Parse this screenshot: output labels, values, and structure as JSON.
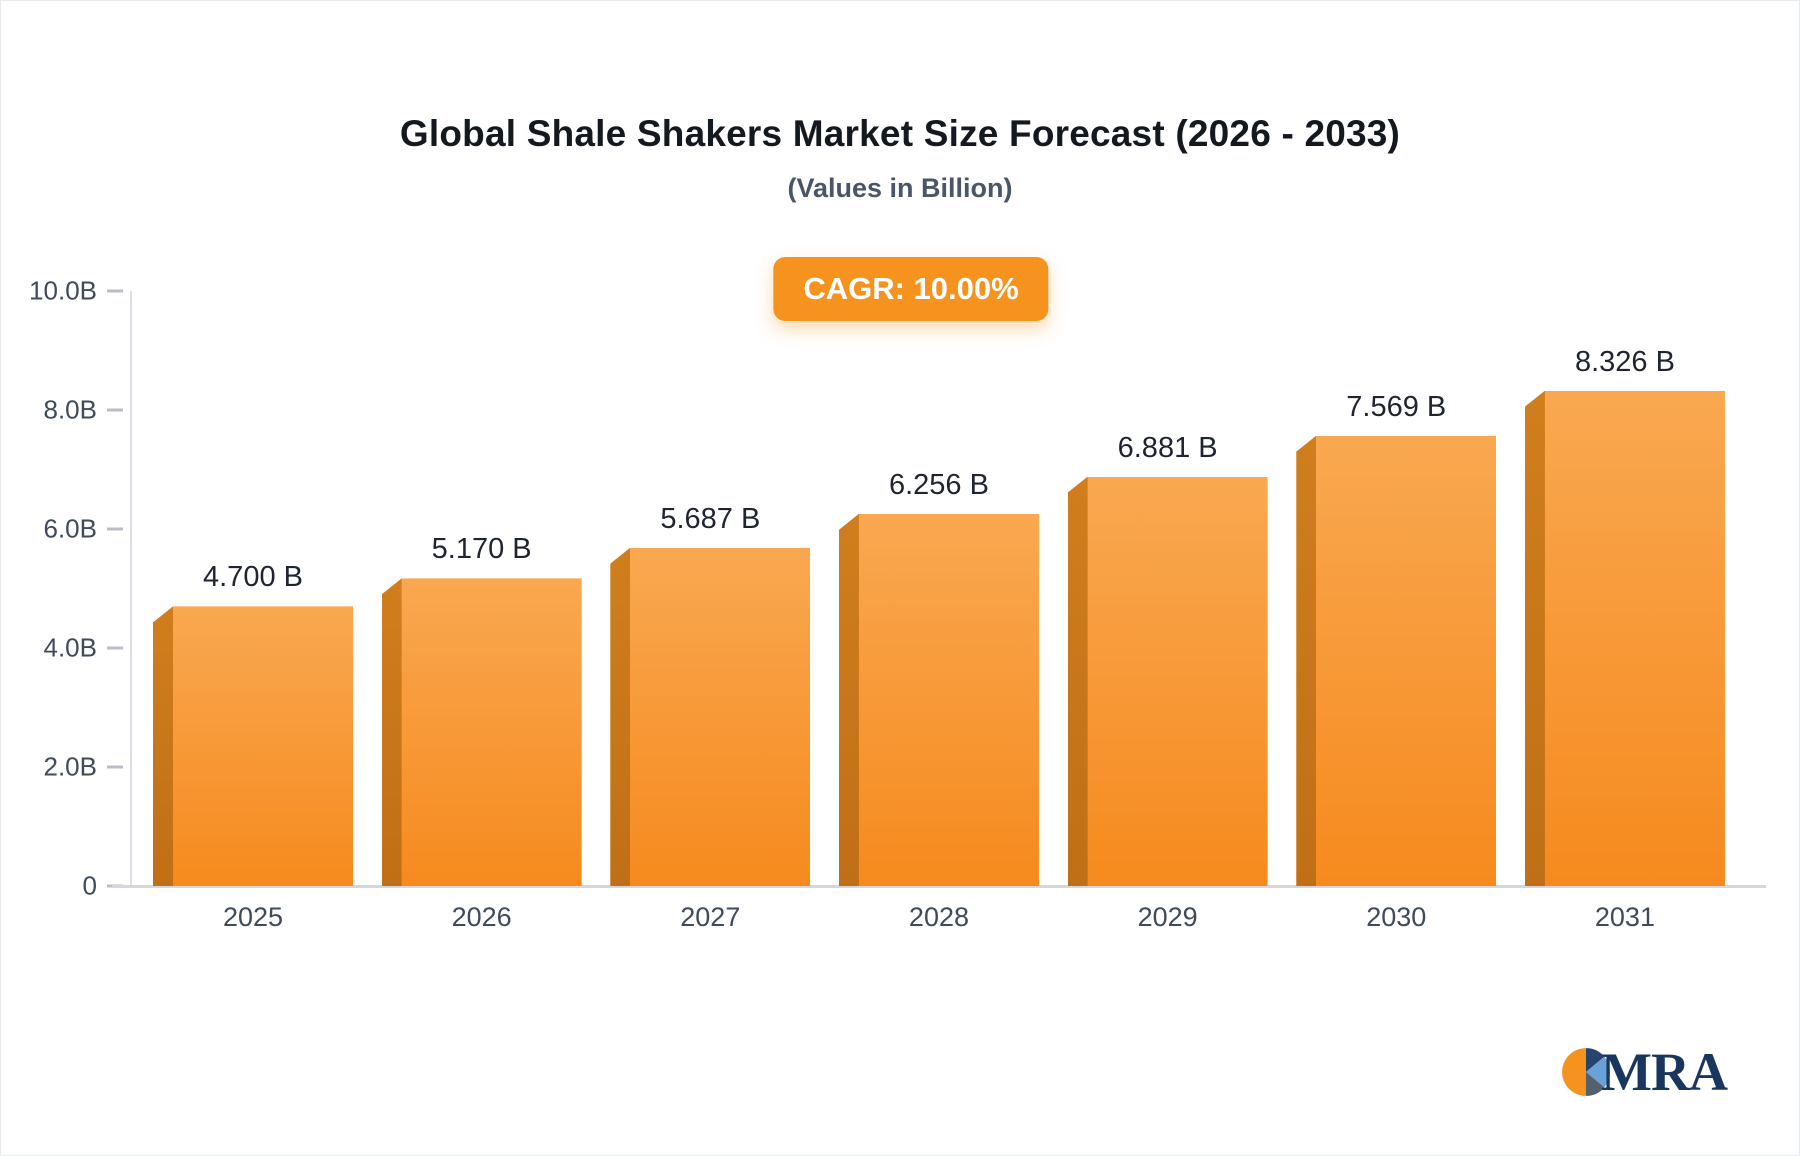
{
  "chart_data": {
    "type": "bar",
    "title": "Global Shale Shakers Market Size Forecast (2026 - 2033)",
    "subtitle": "(Values in Billion)",
    "badge": "CAGR: 10.00%",
    "categories": [
      "2025",
      "2026",
      "2027",
      "2028",
      "2029",
      "2030",
      "2031"
    ],
    "values": [
      4.7,
      5.17,
      5.687,
      6.256,
      6.881,
      7.569,
      8.326
    ],
    "value_labels": [
      "4.700 B",
      "5.170 B",
      "5.687 B",
      "6.256 B",
      "6.881 B",
      "7.569 B",
      "8.326 B"
    ],
    "xlabel": "",
    "ylabel": "",
    "ylim": [
      0,
      10
    ],
    "yticks": [
      {
        "value": 10,
        "label": "10.0B"
      },
      {
        "value": 8,
        "label": "8.0B"
      },
      {
        "value": 6,
        "label": "6.0B"
      },
      {
        "value": 4,
        "label": "4.0B"
      },
      {
        "value": 2,
        "label": "2.0B"
      },
      {
        "value": 0,
        "label": "0"
      }
    ],
    "grid": false,
    "legend_position": "none",
    "bar_color_top": "#f9a851",
    "bar_color_bottom": "#f68a1e",
    "bar_side_color": "#c06f16",
    "badge_color": "#f6921e"
  },
  "logo": {
    "text": "MRA"
  }
}
